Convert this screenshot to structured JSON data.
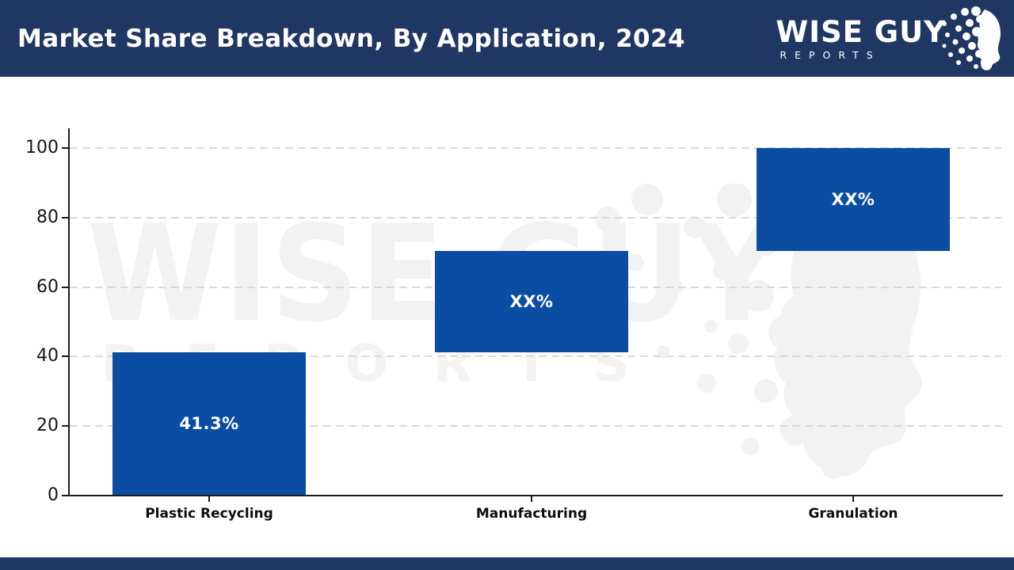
{
  "header": {
    "title": "Market Share Breakdown, By Application, 2024",
    "logo_line1": "WISE GUY",
    "logo_line2": "REPORTS"
  },
  "watermark": {
    "line1": "WISE GUY",
    "line2": "REPORTS"
  },
  "chart_data": {
    "type": "bar",
    "variant": "floating-segment / waterfall market share",
    "title": "Market Share Breakdown, By Application, 2024",
    "categories": [
      "Plastic Recycling",
      "Manufacturing",
      "Granulation"
    ],
    "bars": [
      {
        "category": "Plastic Recycling",
        "start": 0,
        "end": 41.3,
        "label": "41.3%"
      },
      {
        "category": "Manufacturing",
        "start": 41.3,
        "end": 70.5,
        "label": "XX%"
      },
      {
        "category": "Granulation",
        "start": 70.5,
        "end": 100,
        "label": "XX%"
      }
    ],
    "segment_values": [
      41.3,
      29.2,
      29.5
    ],
    "yticks": [
      0,
      20,
      40,
      60,
      80,
      100
    ],
    "ylim": [
      0,
      105.7
    ],
    "xlabel": "",
    "ylabel": "",
    "grid": "horizontal dashed",
    "legend": "none",
    "bar_color": "#0b4da2",
    "bar_label_color": "#ffffff"
  },
  "colors": {
    "header_bg": "#203764",
    "footer_bg": "#203764",
    "title_text": "#ffffff",
    "axis": "#1a1a1a",
    "gridline": "#d9d9d9",
    "tick_label": "#141414",
    "watermark": "#f2f2f2"
  }
}
